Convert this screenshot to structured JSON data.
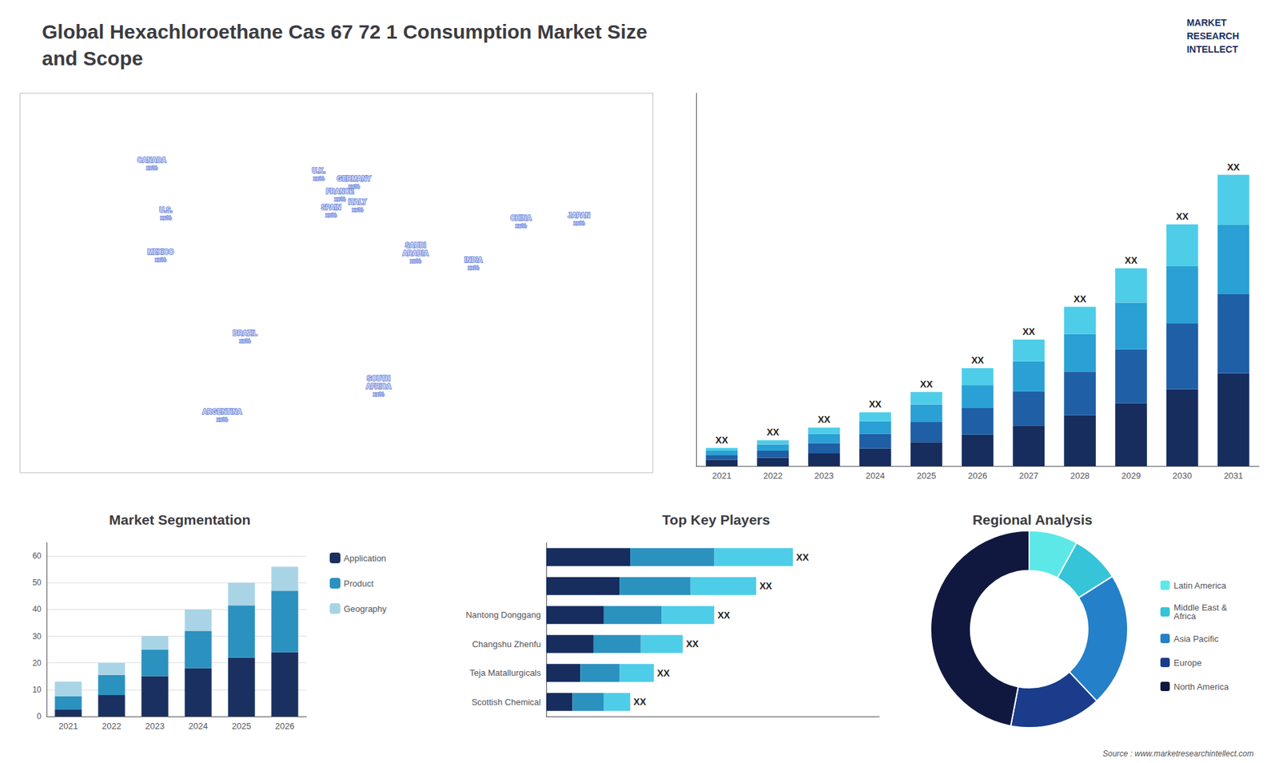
{
  "title": "Global Hexachloroethane Cas 67 72 1 Consumption Market Size\nand Scope",
  "annotations": [
    {
      "text": "MARKET\nRESEARCH\nINTELLECT",
      "color": "#1a3060"
    },
    {
      "text": "Source : www.marketresearchintellect.com",
      "color": "#555555"
    }
  ],
  "chart_data": [
    {
      "type": "map",
      "xlim": [
        -180,
        180
      ],
      "ylim": [
        -60,
        85
      ],
      "tick_labels": false,
      "grid": false,
      "annotations": [
        {
          "text": "CANADA",
          "value_label": "xx%",
          "x": -105,
          "y": 58
        },
        {
          "text": "U.S.",
          "value_label": "xx%",
          "x": -97,
          "y": 39
        },
        {
          "text": "MEXICO",
          "value_label": "xx%",
          "x": -100,
          "y": 23
        },
        {
          "text": "BRAZIL",
          "value_label": "xx%",
          "x": -52,
          "y": -8
        },
        {
          "text": "ARGENTINA",
          "value_label": "xx%",
          "x": -65,
          "y": -38
        },
        {
          "text": "U.K.",
          "value_label": "xx%",
          "x": -10,
          "y": 54
        },
        {
          "text": "FRANCE",
          "value_label": "xx%",
          "x": 2,
          "y": 46
        },
        {
          "text": "SPAIN",
          "value_label": "xx%",
          "x": -3,
          "y": 40
        },
        {
          "text": "GERMANY",
          "value_label": "xx%",
          "x": 10,
          "y": 51
        },
        {
          "text": "ITALY",
          "value_label": "xx%",
          "x": 12,
          "y": 42
        },
        {
          "text": "SAUDI\nARABIA",
          "value_label": "xx%",
          "x": 45,
          "y": 24
        },
        {
          "text": "SOUTH\nAFRICA",
          "value_label": "xx%",
          "x": 24,
          "y": -27
        },
        {
          "text": "CHINA",
          "value_label": "xx%",
          "x": 105,
          "y": 36
        },
        {
          "text": "INDIA",
          "value_label": "xx%",
          "x": 78,
          "y": 20
        },
        {
          "text": "JAPAN",
          "value_label": "xx%",
          "x": 138,
          "y": 37
        }
      ]
    },
    {
      "type": "bar",
      "stacked": true,
      "categories": [
        "2021",
        "2022",
        "2023",
        "2024",
        "2025",
        "2026",
        "2027",
        "2028",
        "2029",
        "2030",
        "2031"
      ],
      "series": [
        {
          "color": "#162d5e",
          "values": [
            0.9,
            1.2,
            1.8,
            2.5,
            3.4,
            4.5,
            5.8,
            7.3,
            9.0,
            11.0,
            13.3
          ]
        },
        {
          "color": "#1f5fa6",
          "values": [
            0.7,
            1.0,
            1.5,
            2.1,
            2.9,
            3.8,
            4.9,
            6.2,
            7.7,
            9.4,
            11.3
          ]
        },
        {
          "color": "#2aa0d4",
          "values": [
            0.6,
            0.9,
            1.3,
            1.8,
            2.5,
            3.3,
            4.3,
            5.4,
            6.7,
            8.2,
            9.9
          ]
        },
        {
          "color": "#4ecde8",
          "values": [
            0.4,
            0.6,
            0.9,
            1.3,
            1.8,
            2.4,
            3.1,
            3.9,
            4.9,
            6.0,
            7.2
          ],
          "value_labels": [
            "XX",
            "XX",
            "XX",
            "XX",
            "XX",
            "XX",
            "XX",
            "XX",
            "XX",
            "XX",
            "XX"
          ]
        }
      ],
      "ylim": [
        0,
        53.376
      ],
      "tick_labels": "x",
      "grid": false
    },
    {
      "type": "bar",
      "title": "Market Segmentation",
      "stacked": true,
      "categories": [
        "2021",
        "2022",
        "2023",
        "2024",
        "2025",
        "2026"
      ],
      "series": [
        {
          "name": "Application",
          "color": "#1a3060",
          "values": [
            2.5,
            8.0,
            15.0,
            18.0,
            22.0,
            24.0
          ]
        },
        {
          "name": "Product",
          "color": "#2b91be",
          "values": [
            5.0,
            7.5,
            10.0,
            14.0,
            19.5,
            23.0
          ]
        },
        {
          "name": "Geography",
          "color": "#a9d4e6",
          "values": [
            5.5,
            4.5,
            5.0,
            8.0,
            8.5,
            9.0
          ]
        }
      ],
      "ylim": [
        0,
        65
      ],
      "yticks": [
        0,
        10,
        20,
        30,
        40,
        50,
        60
      ],
      "grid": true,
      "legend": "right"
    },
    {
      "type": "bar",
      "title": "Top Key Players",
      "orientation": "horizontal",
      "stacked": true,
      "categories": [
        "Scottish Chemical",
        "Teja Matallurgicals",
        "Changshu Zhenfu",
        "Nantong Donggang",
        null,
        null
      ],
      "series": [
        {
          "color": "#162d5e",
          "values": [
            1.0,
            1.3,
            1.8,
            2.2,
            2.8,
            3.2
          ]
        },
        {
          "color": "#2b91be",
          "values": [
            1.2,
            1.5,
            1.8,
            2.2,
            2.7,
            3.2
          ]
        },
        {
          "color": "#4ecde8",
          "values": [
            1.0,
            1.3,
            1.6,
            2.0,
            2.5,
            3.0
          ],
          "value_labels": [
            "XX",
            "XX",
            "XX",
            "XX",
            "XX",
            "XX"
          ]
        }
      ],
      "xlim": [
        0,
        12.69
      ],
      "tick_labels": "y",
      "grid": false
    },
    {
      "type": "donut",
      "title": "Regional Analysis",
      "categories": [
        "Latin America",
        "Middle East &\nAfrica",
        "Asia Pacific",
        "Europe",
        "North America"
      ],
      "values": [
        8,
        8,
        22,
        15,
        47
      ],
      "colors": [
        "#5de8e8",
        "#36c4d8",
        "#2480c8",
        "#1a3c8a",
        "#111840"
      ],
      "legend": "right"
    }
  ]
}
